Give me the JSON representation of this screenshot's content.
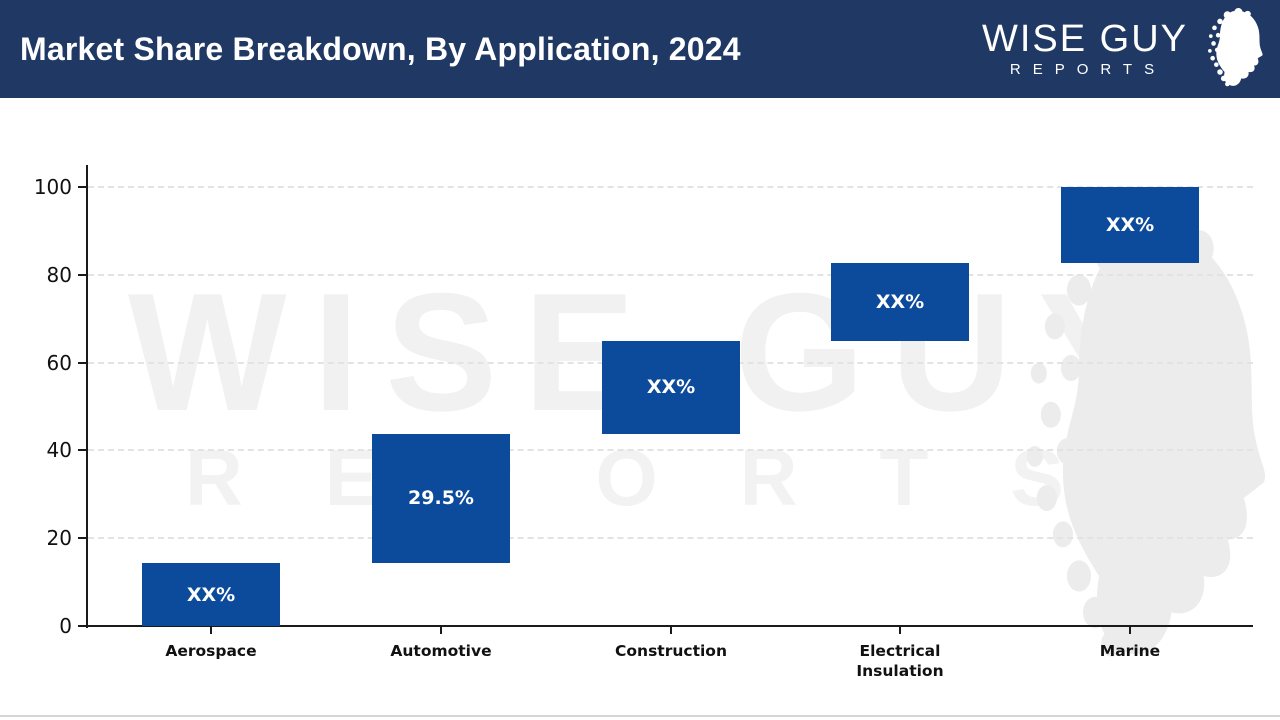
{
  "header": {
    "title": "Market Share Breakdown, By Application, 2024",
    "logo_line1": "WISE GUY",
    "logo_line2": "REPORTS",
    "bg_color": "#203864"
  },
  "watermark": {
    "line1": "WISE GUY",
    "line2": "REPORTS"
  },
  "chart_data": {
    "type": "bar",
    "subtype": "floating-waterfall",
    "title": "Market Share Breakdown, By Application, 2024",
    "categories": [
      "Aerospace",
      "Automotive",
      "Construction",
      "Electrical Insulation",
      "Marine"
    ],
    "segments": [
      {
        "category": "Aerospace",
        "start": 0,
        "end": 14.3,
        "label": "XX%"
      },
      {
        "category": "Automotive",
        "start": 14.3,
        "end": 43.8,
        "label": "29.5%"
      },
      {
        "category": "Construction",
        "start": 43.8,
        "end": 64.9,
        "label": "XX%"
      },
      {
        "category": "Electrical Insulation",
        "start": 64.9,
        "end": 82.7,
        "label": "XX%"
      },
      {
        "category": "Marine",
        "start": 82.7,
        "end": 100,
        "label": "XX%"
      }
    ],
    "y_ticks": [
      0,
      20,
      40,
      60,
      80,
      100
    ],
    "ylim": [
      0,
      100
    ],
    "grid": "horizontal-dashed",
    "legend": "none",
    "bar_color": "#0c4a9c",
    "bar_label_color": "#ffffff",
    "axis_color": "#1a1a1a"
  }
}
